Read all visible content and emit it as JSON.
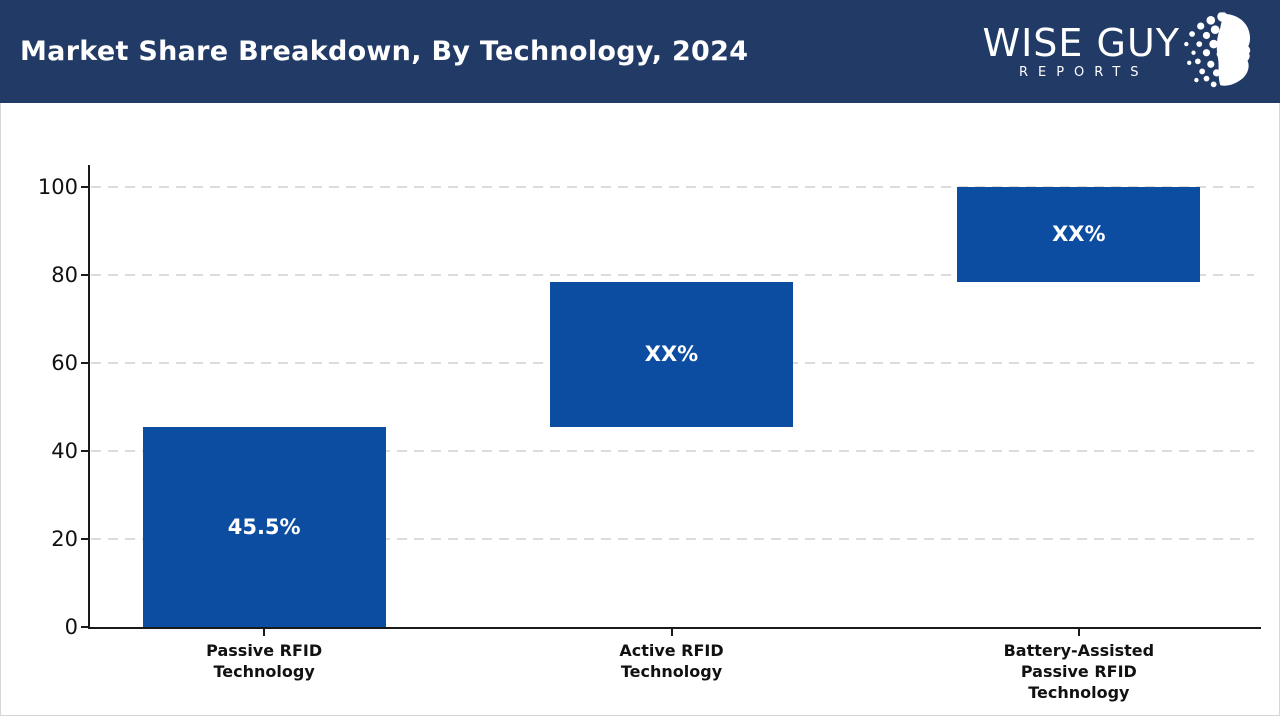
{
  "header": {
    "title": "Market Share Breakdown, By Technology, 2024",
    "logo": {
      "line1": "WISE GUY",
      "line2": "REPORTS",
      "face_icon": "dotted-head-profile"
    }
  },
  "watermark": {
    "line1": "WISE GUY",
    "line2": "R E P O R T S",
    "face_icon": "dotted-head-profile"
  },
  "colors": {
    "header_bg": "#213a66",
    "bar": "#0c4da2",
    "grid": "#dcdcdc",
    "axis": "#1a1a1a",
    "bar_label_text": "#ffffff",
    "watermark": "#f2f2f2"
  },
  "chart_data": {
    "type": "bar",
    "subtype": "waterfall",
    "title": "Market Share Breakdown, By Technology, 2024",
    "categories": [
      "Passive RFID\nTechnology",
      "Active RFID\nTechnology",
      "Battery-Assisted\nPassive RFID\nTechnology"
    ],
    "segments": [
      {
        "category": "Passive RFID Technology",
        "start": 0,
        "end": 45.5,
        "label": "45.5%"
      },
      {
        "category": "Active RFID Technology",
        "start": 45.5,
        "end": 78.5,
        "label": "XX%"
      },
      {
        "category": "Battery-Assisted Passive RFID Technology",
        "start": 78.5,
        "end": 100,
        "label": "XX%"
      }
    ],
    "xlabel": "",
    "ylabel": "",
    "yticks": [
      0,
      20,
      40,
      60,
      80,
      100
    ],
    "ylim": [
      0,
      105
    ],
    "grid": "dashed-horizontal",
    "legend": null
  }
}
